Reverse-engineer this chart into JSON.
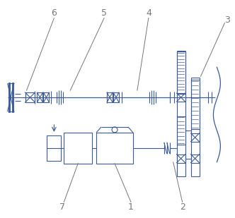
{
  "bg_color": "#ffffff",
  "line_color": "#3a5a9a",
  "label_color": "#777777",
  "fig_w": 3.32,
  "fig_h": 3.09,
  "dpi": 100
}
